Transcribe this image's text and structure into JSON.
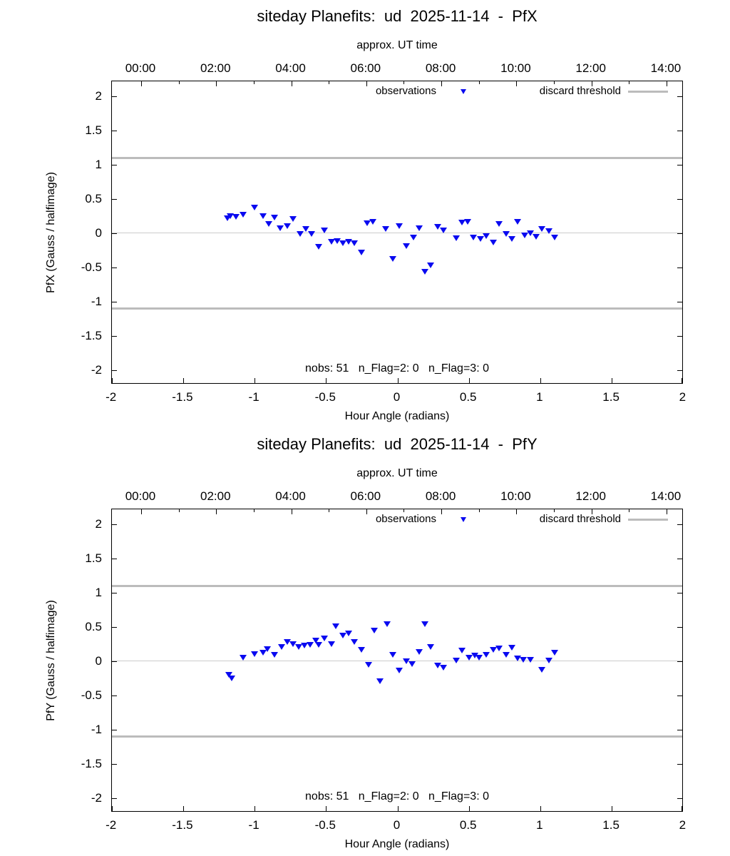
{
  "colors": {
    "observation_marker": "#0a0af0",
    "discard_threshold_line": "#bcbcbc",
    "zero_line": "#cccccc",
    "frame": "#000000"
  },
  "chart_data": [
    {
      "type": "scatter",
      "title": "siteday Planefits:  ud  2025-11-14  -  PfX",
      "x2label": "approx. UT time",
      "xlabel": "Hour Angle (radians)",
      "ylabel": "PfX (Gauss / halfimage)",
      "annotation": "nobs: 51   n_Flag=2: 0   n_Flag=3: 0",
      "legend": [
        "observations",
        "discard threshold"
      ],
      "legend_position": "top-inside",
      "grid": "zero-line-only",
      "xlim": [
        -2,
        2
      ],
      "ylim": [
        -2.2,
        2.2
      ],
      "x_ticks": [
        "-2",
        "-1.5",
        "-1",
        "-0.5",
        "0",
        "0.5",
        "1",
        "1.5",
        "2"
      ],
      "y_ticks": [
        "2",
        "1.5",
        "1",
        "0.5",
        "0",
        "-0.5",
        "-1",
        "-1.5",
        "-2"
      ],
      "x2_ticks": [
        "00:00",
        "02:00",
        "04:00",
        "06:00",
        "08:00",
        "10:00",
        "12:00",
        "14:00"
      ],
      "thresholds": {
        "name": "discard threshold",
        "values": [
          1.1,
          -1.1
        ]
      },
      "series": [
        {
          "name": "observations",
          "marker": "triangle-down",
          "points": [
            [
              -1.19,
              0.22
            ],
            [
              -1.17,
              0.25
            ],
            [
              -1.13,
              0.24
            ],
            [
              -1.08,
              0.27
            ],
            [
              -1.0,
              0.38
            ],
            [
              -0.94,
              0.25
            ],
            [
              -0.9,
              0.14
            ],
            [
              -0.86,
              0.23
            ],
            [
              -0.82,
              0.07
            ],
            [
              -0.77,
              0.1
            ],
            [
              -0.73,
              0.21
            ],
            [
              -0.68,
              -0.01
            ],
            [
              -0.64,
              0.06
            ],
            [
              -0.6,
              -0.01
            ],
            [
              -0.55,
              -0.2
            ],
            [
              -0.51,
              0.04
            ],
            [
              -0.46,
              -0.13
            ],
            [
              -0.42,
              -0.11
            ],
            [
              -0.38,
              -0.15
            ],
            [
              -0.34,
              -0.13
            ],
            [
              -0.3,
              -0.15
            ],
            [
              -0.25,
              -0.28
            ],
            [
              -0.21,
              0.15
            ],
            [
              -0.17,
              0.17
            ],
            [
              -0.08,
              0.06
            ],
            [
              -0.03,
              -0.37
            ],
            [
              0.01,
              0.1
            ],
            [
              0.06,
              -0.19
            ],
            [
              0.11,
              -0.06
            ],
            [
              0.15,
              0.07
            ],
            [
              0.19,
              -0.56
            ],
            [
              0.23,
              -0.47
            ],
            [
              0.28,
              0.09
            ],
            [
              0.32,
              0.04
            ],
            [
              0.41,
              -0.07
            ],
            [
              0.45,
              0.16
            ],
            [
              0.49,
              0.17
            ],
            [
              0.53,
              -0.06
            ],
            [
              0.58,
              -0.08
            ],
            [
              0.62,
              -0.04
            ],
            [
              0.67,
              -0.14
            ],
            [
              0.71,
              0.14
            ],
            [
              0.76,
              -0.01
            ],
            [
              0.8,
              -0.08
            ],
            [
              0.84,
              0.17
            ],
            [
              0.89,
              -0.03
            ],
            [
              0.93,
              0.0
            ],
            [
              0.97,
              -0.05
            ],
            [
              1.01,
              0.06
            ],
            [
              1.06,
              0.03
            ],
            [
              1.1,
              -0.06
            ]
          ]
        }
      ]
    },
    {
      "type": "scatter",
      "title": "siteday Planefits:  ud  2025-11-14  -  PfY",
      "x2label": "approx. UT time",
      "xlabel": "Hour Angle (radians)",
      "ylabel": "PfY (Gauss / halfimage)",
      "annotation": "nobs: 51   n_Flag=2: 0   n_Flag=3: 0",
      "legend": [
        "observations",
        "discard threshold"
      ],
      "legend_position": "top-inside",
      "grid": "zero-line-only",
      "xlim": [
        -2,
        2
      ],
      "ylim": [
        -2.2,
        2.2
      ],
      "x_ticks": [
        "-2",
        "-1.5",
        "-1",
        "-0.5",
        "0",
        "0.5",
        "1",
        "1.5",
        "2"
      ],
      "y_ticks": [
        "2",
        "1.5",
        "1",
        "0.5",
        "0",
        "-0.5",
        "-1",
        "-1.5",
        "-2"
      ],
      "x2_ticks": [
        "00:00",
        "02:00",
        "04:00",
        "06:00",
        "08:00",
        "10:00",
        "12:00",
        "14:00"
      ],
      "thresholds": {
        "name": "discard threshold",
        "values": [
          1.1,
          -1.1
        ]
      },
      "series": [
        {
          "name": "observations",
          "marker": "triangle-down",
          "points": [
            [
              -1.18,
              -0.2
            ],
            [
              -1.16,
              -0.25
            ],
            [
              -1.08,
              0.05
            ],
            [
              -1.0,
              0.1
            ],
            [
              -0.94,
              0.13
            ],
            [
              -0.91,
              0.18
            ],
            [
              -0.86,
              0.09
            ],
            [
              -0.81,
              0.21
            ],
            [
              -0.77,
              0.28
            ],
            [
              -0.73,
              0.25
            ],
            [
              -0.69,
              0.21
            ],
            [
              -0.65,
              0.23
            ],
            [
              -0.61,
              0.24
            ],
            [
              -0.57,
              0.3
            ],
            [
              -0.55,
              0.24
            ],
            [
              -0.51,
              0.33
            ],
            [
              -0.46,
              0.25
            ],
            [
              -0.43,
              0.51
            ],
            [
              -0.38,
              0.37
            ],
            [
              -0.34,
              0.41
            ],
            [
              -0.3,
              0.28
            ],
            [
              -0.25,
              0.17
            ],
            [
              -0.2,
              -0.05
            ],
            [
              -0.16,
              0.45
            ],
            [
              -0.12,
              -0.29
            ],
            [
              -0.07,
              0.54
            ],
            [
              -0.03,
              0.09
            ],
            [
              0.01,
              -0.14
            ],
            [
              0.06,
              0.0
            ],
            [
              0.1,
              -0.04
            ],
            [
              0.15,
              0.14
            ],
            [
              0.19,
              0.54
            ],
            [
              0.23,
              0.21
            ],
            [
              0.28,
              -0.06
            ],
            [
              0.32,
              -0.09
            ],
            [
              0.41,
              0.01
            ],
            [
              0.45,
              0.16
            ],
            [
              0.5,
              0.05
            ],
            [
              0.54,
              0.08
            ],
            [
              0.57,
              0.05
            ],
            [
              0.62,
              0.09
            ],
            [
              0.67,
              0.17
            ],
            [
              0.71,
              0.19
            ],
            [
              0.76,
              0.09
            ],
            [
              0.8,
              0.2
            ],
            [
              0.84,
              0.04
            ],
            [
              0.88,
              0.02
            ],
            [
              0.93,
              0.02
            ],
            [
              1.01,
              -0.12
            ],
            [
              1.06,
              0.01
            ],
            [
              1.1,
              0.13
            ]
          ]
        }
      ]
    }
  ]
}
